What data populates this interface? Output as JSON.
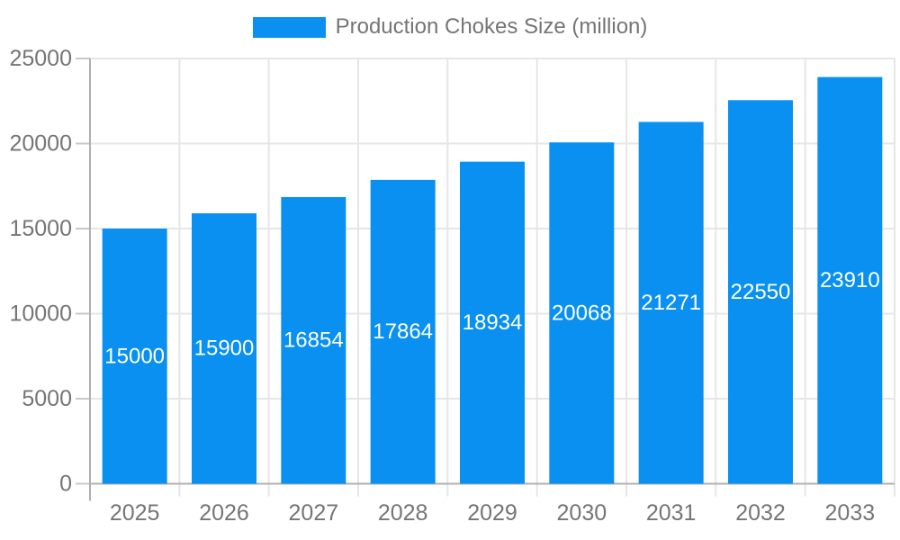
{
  "chart_data": {
    "type": "bar",
    "title": "Production Chokes Size (million)",
    "categories": [
      "2025",
      "2026",
      "2027",
      "2028",
      "2029",
      "2030",
      "2031",
      "2032",
      "2033"
    ],
    "values": [
      15000,
      15900,
      16854,
      17864,
      18934,
      20068,
      21271,
      22550,
      23910
    ],
    "bar_labels": [
      "15000",
      "15900",
      "16854",
      "17864",
      "18934",
      "20068",
      "21271",
      "22550",
      "23910"
    ],
    "series_name": "Production Chokes Size (million)",
    "xlabel": "",
    "ylabel": "",
    "ylim": [
      0,
      25000
    ],
    "yticks": [
      0,
      5000,
      10000,
      15000,
      20000,
      25000
    ],
    "ytick_labels": [
      "0",
      "5000",
      "10000",
      "15000",
      "20000",
      "25000"
    ],
    "grid": "on",
    "legend_position": "top",
    "bar_label_position": "middle",
    "colors": {
      "bar": "#0a90f0",
      "grid": "#e6e6e6",
      "axis": "#b0b0b0",
      "tick": "#c9c9c9",
      "text": "#757575",
      "bar_label": "#ffffff",
      "background": "#ffffff"
    }
  }
}
